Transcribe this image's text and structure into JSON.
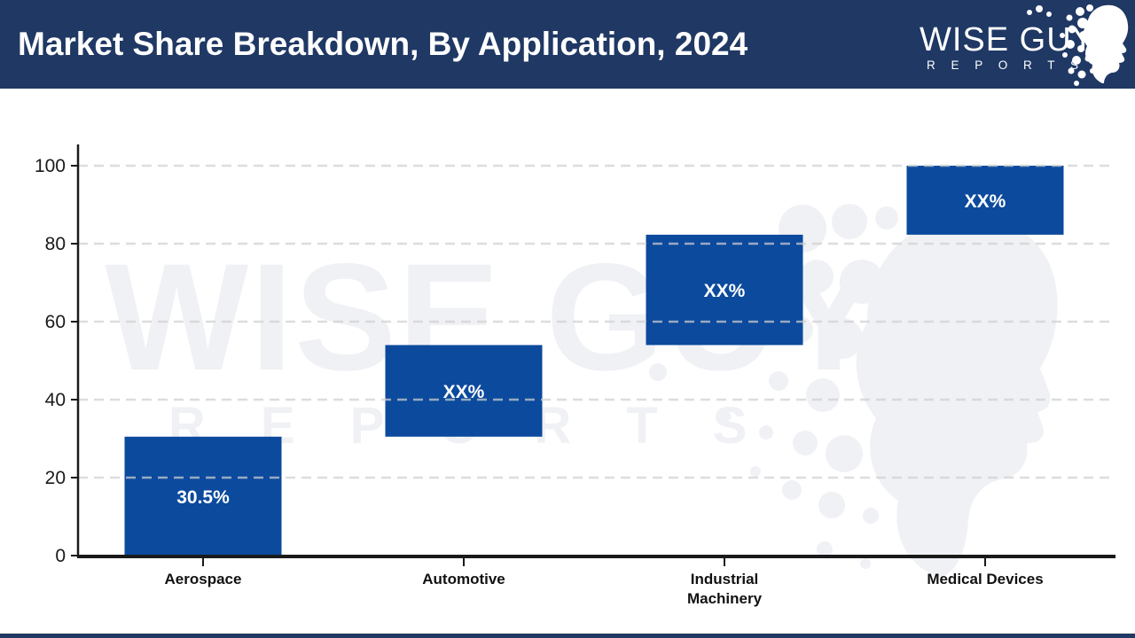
{
  "header": {
    "title": "Market Share Breakdown, By Application, 2024",
    "logo": {
      "line1": "WISE GUY",
      "line2": "R E P O R T S"
    }
  },
  "watermark": {
    "line1": "WISE GUY",
    "line2": "R E P O R T S"
  },
  "colors": {
    "header_bg": "#1f3864",
    "bar_blue": "#0b4a9d",
    "axis_black": "#1a1a1a",
    "grid_gray": "#d2d2d2",
    "watermark_gray": "#f0f1f5",
    "bar_label_white": "#ffffff",
    "category_text": "#111111"
  },
  "chart_data": {
    "type": "bar",
    "subtype": "waterfall",
    "title": "Market Share Breakdown, By Application, 2024",
    "categories": [
      "Aerospace",
      "Automotive",
      "Industrial Machinery",
      "Medical Devices"
    ],
    "category_label_lines": [
      [
        "Aerospace"
      ],
      [
        "Automotive"
      ],
      [
        "Industrial",
        "Machinery"
      ],
      [
        "Medical Devices"
      ]
    ],
    "segments": [
      {
        "category": "Aerospace",
        "start": 0,
        "end": 30.5,
        "label": "30.5%"
      },
      {
        "category": "Automotive",
        "start": 30.5,
        "end": 54,
        "label": "XX%"
      },
      {
        "category": "Industrial Machinery",
        "start": 54,
        "end": 82.3,
        "label": "XX%"
      },
      {
        "category": "Medical Devices",
        "start": 82.3,
        "end": 100,
        "label": "XX%"
      }
    ],
    "y_ticks": [
      "0",
      "20",
      "40",
      "60",
      "80",
      "100"
    ],
    "y_tick_values": [
      0,
      20,
      40,
      60,
      80,
      100
    ],
    "ylim": [
      0,
      100
    ],
    "xlabel": "",
    "ylabel": "",
    "grid": "horizontal-dashed",
    "legend": "none"
  }
}
